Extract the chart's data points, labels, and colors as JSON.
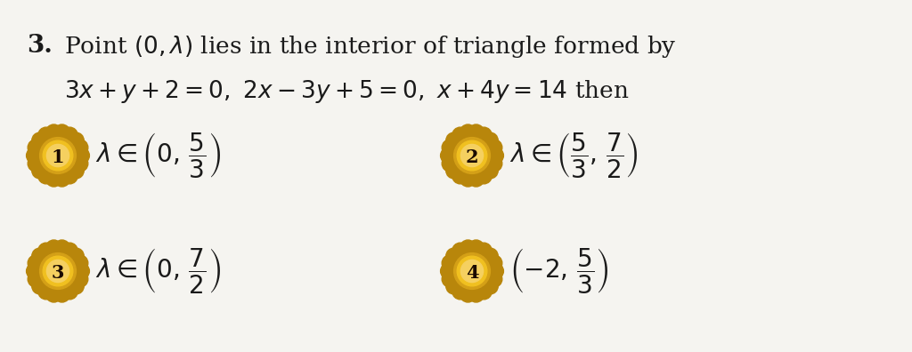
{
  "background_color": "#f5f4f0",
  "text_color": "#1a1a1a",
  "font_size_main": 19,
  "title": "3.",
  "line1_plain": "Point ",
  "line1_math": "$(0, \\lambda)$",
  "line1_rest": " lies in the interior of triangle formed by",
  "line2": "$3x + y + 2 = 0,\\ 2x - 3y + 5 = 0,\\ x + 4y = 14$  then",
  "option1": "$\\lambda \\in \\left(0,\\,\\dfrac{5}{3}\\right)$",
  "option2": "$\\lambda \\in \\left(\\dfrac{5}{3},\\,\\dfrac{7}{2}\\right)$",
  "option3": "$\\lambda \\in \\left(0,\\,\\dfrac{7}{2}\\right)$",
  "option4": "$\\left(-2,\\,\\dfrac{5}{3}\\right)$",
  "medal_outer": "#b8860b",
  "medal_mid": "#d4a017",
  "medal_inner": "#f0c020",
  "medal_highlight": "#f5d060",
  "medal_number_color": "#1a0a00",
  "medal_petal_color": "#8b0000"
}
